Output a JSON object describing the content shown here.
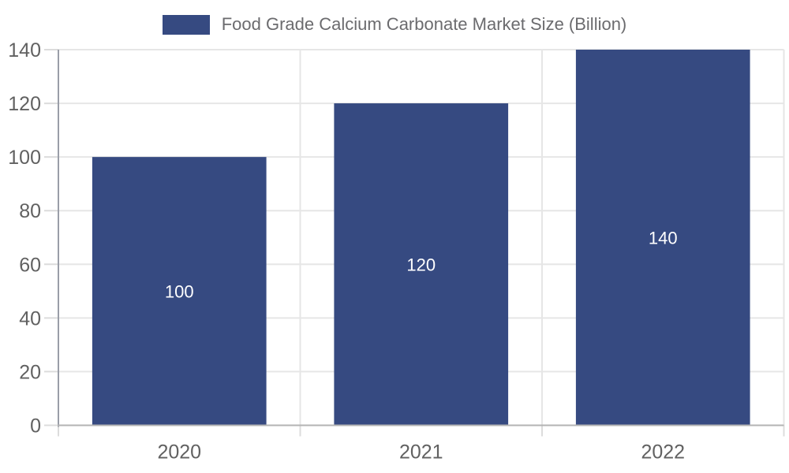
{
  "legend": {
    "label": "Food Grade Calcium Carbonate Market Size (Billion)"
  },
  "chart_data": {
    "type": "bar",
    "categories": [
      "2020",
      "2021",
      "2022"
    ],
    "values": [
      100,
      120,
      140
    ],
    "bar_labels": [
      "100",
      "120",
      "140"
    ],
    "series_name": "Food Grade Calcium Carbonate Market Size (Billion)",
    "title": "",
    "xlabel": "",
    "ylabel": "",
    "ylim": [
      0,
      140
    ],
    "yticks": [
      0,
      20,
      40,
      60,
      80,
      100,
      120,
      140
    ],
    "grid": true,
    "legend_position": "top-center",
    "bar_label_position": "inside-middle"
  },
  "colors": {
    "bar": "#364a81",
    "grid": "#e6e6e6",
    "tick_mark": "#dcdcdc",
    "y_axis_line": "#9a9ea8",
    "x_axis_line": "#b3b3b3",
    "tick_label": "#616161",
    "legend_text": "#6b6b6e",
    "bar_label": "#ffffff",
    "background": "#ffffff"
  }
}
